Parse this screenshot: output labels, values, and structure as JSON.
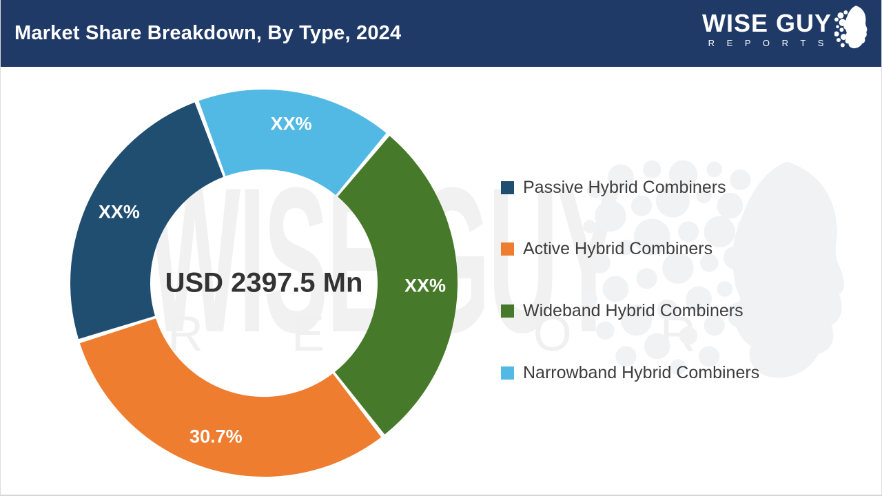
{
  "header": {
    "title": "Market Share Breakdown, By Type, 2024",
    "bg_color": "#203a67",
    "logo": {
      "name": "WISE GUY",
      "sub": "R E P O R T S"
    }
  },
  "watermark": {
    "line1": "WISE GUY",
    "line2": "R E P O R T S"
  },
  "chart_data": {
    "type": "pie",
    "subtype": "donut",
    "title": "Market Share Breakdown, By Type, 2024",
    "center_label": "USD 2397.5 Mn",
    "rotation_deg": 110.3,
    "units": "percent market share",
    "legend_position": "right",
    "segments": [
      {
        "name": "Narrowband Hybrid Combiners",
        "label": "XX%",
        "value": 16.7,
        "color": "#52b8e4"
      },
      {
        "name": "Wideband Hybrid Combiners",
        "label": "XX%",
        "value": 28.4,
        "color": "#46792a"
      },
      {
        "name": "Active Hybrid Combiners",
        "label": "30.7%",
        "value": 30.7,
        "color": "#ee7d30"
      },
      {
        "name": "Passive Hybrid Combiners",
        "label": "XX%",
        "value": 24.2,
        "color": "#204e70"
      }
    ],
    "legend": [
      {
        "label": "Passive Hybrid Combiners",
        "color": "#204e70"
      },
      {
        "label": "Active Hybrid Combiners",
        "color": "#ee7d30"
      },
      {
        "label": "Wideband Hybrid Combiners",
        "color": "#46792a"
      },
      {
        "label": "Narrowband Hybrid Combiners",
        "color": "#52b8e4"
      }
    ]
  }
}
